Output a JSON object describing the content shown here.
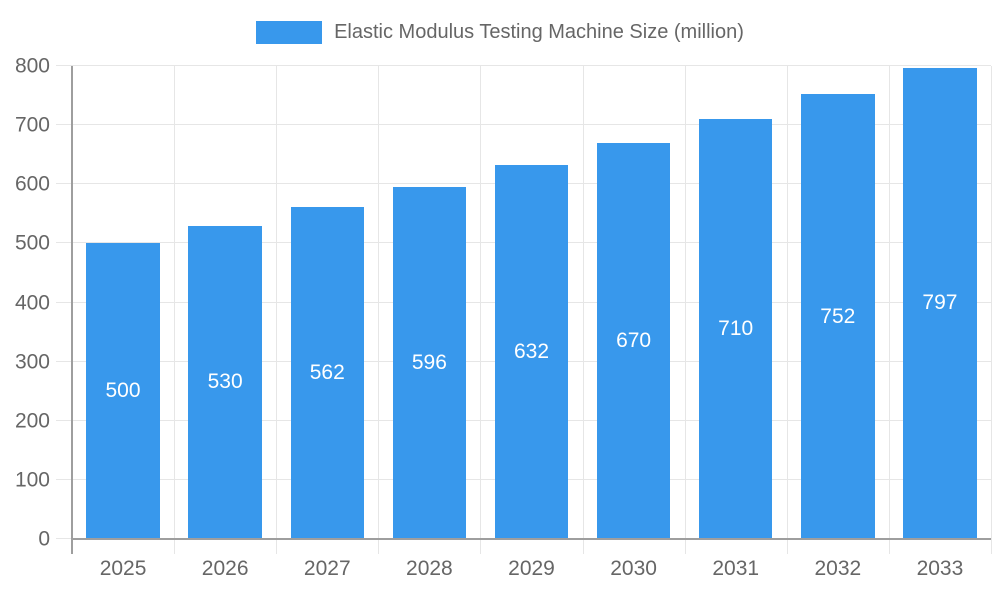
{
  "legend": {
    "label": "Elastic Modulus Testing Machine Size (million)"
  },
  "chart_data": {
    "type": "bar",
    "title": "Elastic Modulus Testing Machine Size (million)",
    "categories": [
      "2025",
      "2026",
      "2027",
      "2028",
      "2029",
      "2030",
      "2031",
      "2032",
      "2033"
    ],
    "values": [
      500,
      530,
      562,
      596,
      632,
      670,
      710,
      752,
      797
    ],
    "xlabel": "",
    "ylabel": "",
    "ylim": [
      0,
      800
    ],
    "yticks": [
      0,
      100,
      200,
      300,
      400,
      500,
      600,
      700,
      800
    ],
    "grid": true,
    "legend_position": "top",
    "value_label_position": "inside-center",
    "bar_width_fraction": 0.72,
    "colors": {
      "bar": "#3898ec",
      "value_label": "#ffffff",
      "tick_label": "#666666",
      "grid": "#e6e6e6",
      "axis": "#9e9e9e",
      "background": "#ffffff"
    }
  }
}
